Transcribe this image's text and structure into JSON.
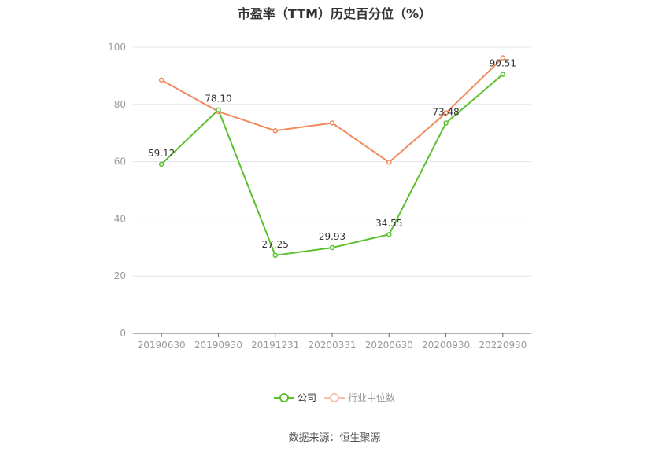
{
  "chart_data": {
    "type": "line",
    "title": "市盈率（TTM）历史百分位（%）",
    "xlabel": "",
    "ylabel": "",
    "ylim": [
      0,
      100
    ],
    "yticks": [
      0,
      20,
      40,
      60,
      80,
      100
    ],
    "grid": true,
    "legend_position": "bottom",
    "categories": [
      "20190630",
      "20190930",
      "20191231",
      "20200331",
      "20200630",
      "20200930",
      "20220930"
    ],
    "series": [
      {
        "name": "公司",
        "color": "#5ac12d",
        "values": [
          59.12,
          78.1,
          27.25,
          29.93,
          34.55,
          73.48,
          90.51
        ],
        "labels_shown": true
      },
      {
        "name": "行业中位数",
        "color": "#f08a5d",
        "values": [
          88.5,
          77.5,
          70.8,
          73.5,
          59.8,
          77.0,
          96.3
        ],
        "labels_shown": false
      }
    ]
  },
  "legend": {
    "company": "公司",
    "industry": "行业中位数"
  },
  "source": "数据来源：恒生聚源"
}
